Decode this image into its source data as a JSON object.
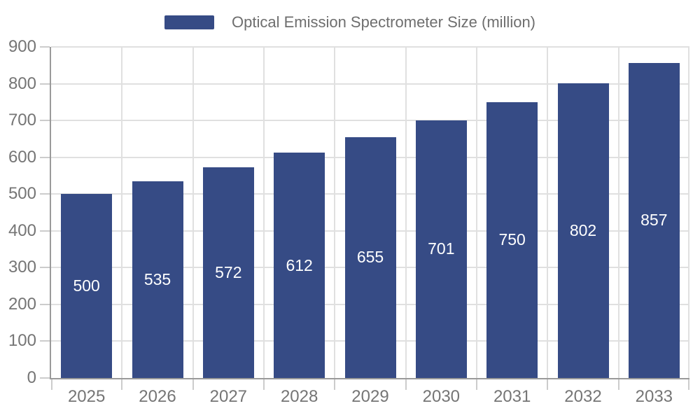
{
  "chart_data": {
    "type": "bar",
    "title": "Optical Emission Spectrometer Size (million)",
    "legend_entries": [
      "Optical Emission Spectrometer Size (million)"
    ],
    "legend_position": "top-center",
    "categories": [
      "2025",
      "2026",
      "2027",
      "2028",
      "2029",
      "2030",
      "2031",
      "2032",
      "2033"
    ],
    "values": [
      500,
      535,
      572,
      612,
      655,
      701,
      750,
      802,
      857
    ],
    "value_labels_shown": true,
    "xlabel": "",
    "ylabel": "",
    "ylim": [
      0,
      900
    ],
    "yticks": [
      0,
      100,
      200,
      300,
      400,
      500,
      600,
      700,
      800,
      900
    ],
    "grid": true,
    "colors": {
      "bar": "#364b85",
      "grid": "#e0e0e0",
      "axis": "#9a9a9a",
      "tick": "#cccccc",
      "tick_label": "#757575",
      "legend_label": "#6e6e6e",
      "value_label": "#ffffff",
      "background": "#ffffff"
    }
  }
}
